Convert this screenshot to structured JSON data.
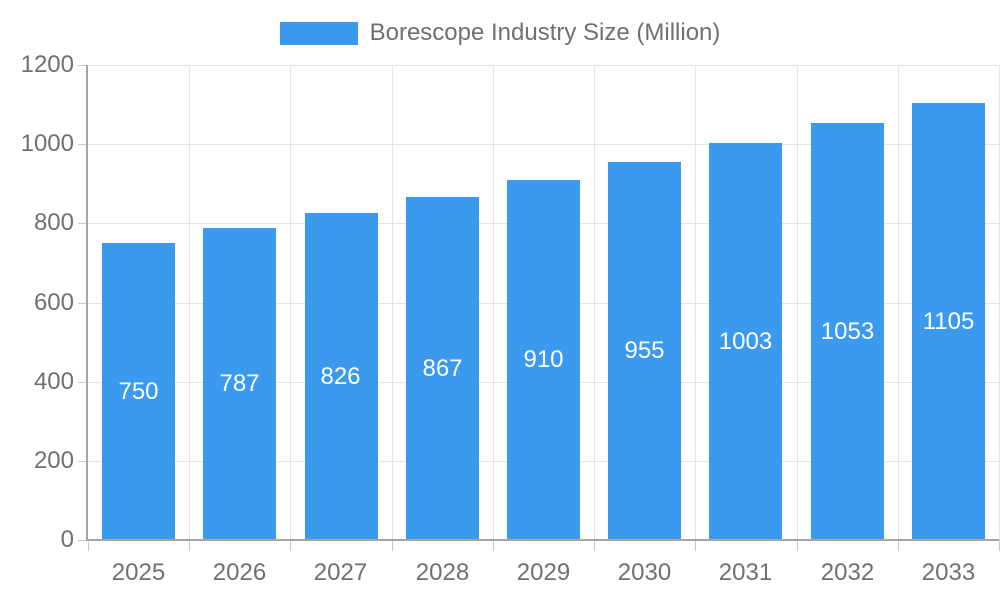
{
  "legend": {
    "label": "Borescope Industry Size (Million)"
  },
  "chart_data": {
    "type": "bar",
    "title": "Borescope Industry Size (Million)",
    "categories": [
      "2025",
      "2026",
      "2027",
      "2028",
      "2029",
      "2030",
      "2031",
      "2032",
      "2033"
    ],
    "values": [
      750,
      787,
      826,
      867,
      910,
      955,
      1003,
      1053,
      1105
    ],
    "xlabel": "",
    "ylabel": "",
    "ylim": [
      0,
      1200
    ],
    "yticks": [
      0,
      200,
      400,
      600,
      800,
      1000,
      1200
    ],
    "grid": "horizontal-and-vertical",
    "legend_position": "top-center",
    "value_labels": "inside-center-white",
    "colors": {
      "bar": "#3B99EE",
      "bar_value_text": "#FFFFFF",
      "axis_text": "#707070",
      "legend_text": "#707070",
      "grid_line": "#E4E4E4",
      "axis_line": "#A5A5A5",
      "tick_mark": "#C8C8C8",
      "background": "#FFFFFF"
    }
  }
}
